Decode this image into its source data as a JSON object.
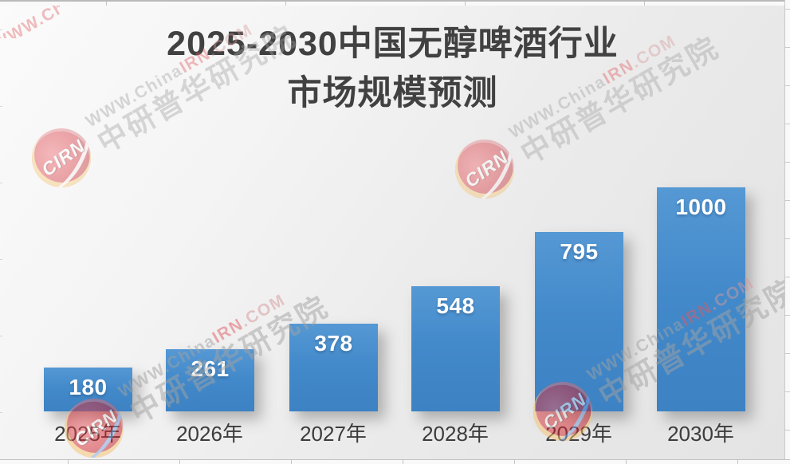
{
  "title": {
    "line1": "2025-2030中国无醇啤酒行业",
    "line2": "市场规模预测"
  },
  "chart_data": {
    "type": "bar",
    "title": "2025-2030中国无醇啤酒行业市场规模预测",
    "categories": [
      "2025年",
      "2026年",
      "2027年",
      "2028年",
      "2029年",
      "2030年"
    ],
    "values": [
      180,
      261,
      378,
      548,
      795,
      1000
    ],
    "xlabel": "",
    "ylabel": "",
    "ylim": [
      0,
      1000
    ],
    "grid": false,
    "legend": "none",
    "bar_color": "#4289ca",
    "value_label_color": "#ffffff",
    "category_label_color": "#3c3c3c"
  },
  "watermark": {
    "url_prefix": "WWW.China",
    "url_highlight": "IRN",
    "url_suffix": ".COM",
    "org": "中研普华研究院",
    "logo_text": "CIRN",
    "accent_red": "#d92b34",
    "text_gray": "#a3a3a3"
  }
}
